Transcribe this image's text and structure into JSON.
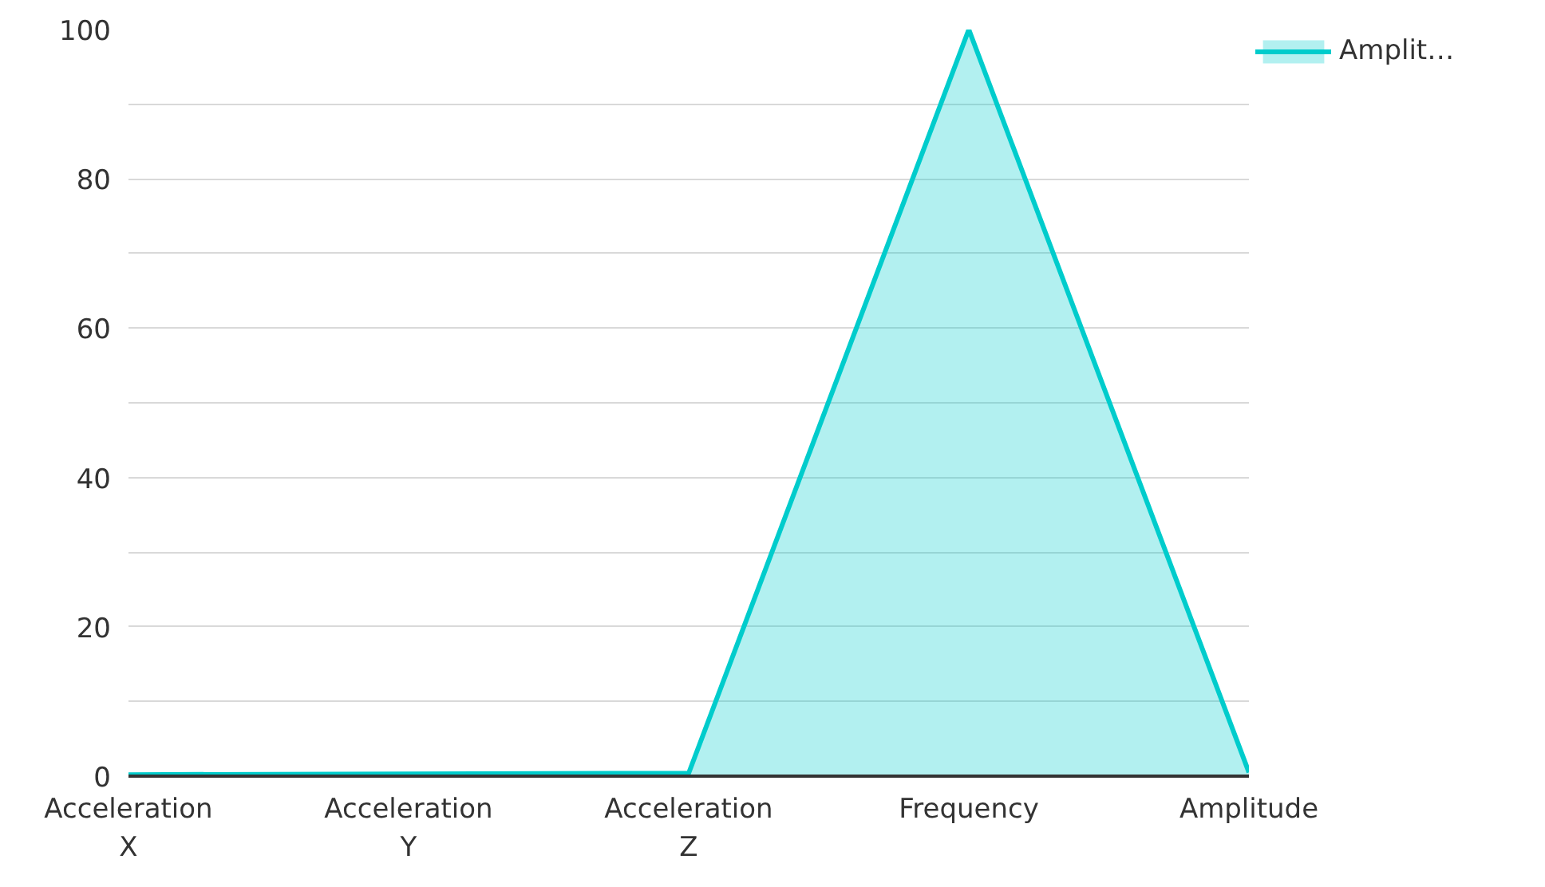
{
  "chart_data": {
    "type": "area",
    "categories": [
      "Acceleration X",
      "Acceleration Y",
      "Acceleration Z",
      "Frequency",
      "Amplitude"
    ],
    "series": [
      {
        "name": "Amplit…",
        "color": "#00cccc",
        "values": [
          0.2,
          0.3,
          0.4,
          100,
          0.5
        ]
      }
    ],
    "ylim": [
      0,
      100
    ],
    "yticks": [
      0,
      {
        "value": 10,
        "label": null
      },
      20,
      {
        "value": 30,
        "label": null
      },
      40,
      {
        "value": 50,
        "label": null
      },
      60,
      {
        "value": 70,
        "label": null
      },
      80,
      {
        "value": 90,
        "label": null
      },
      100
    ],
    "grid": "y",
    "legend": "top right"
  }
}
